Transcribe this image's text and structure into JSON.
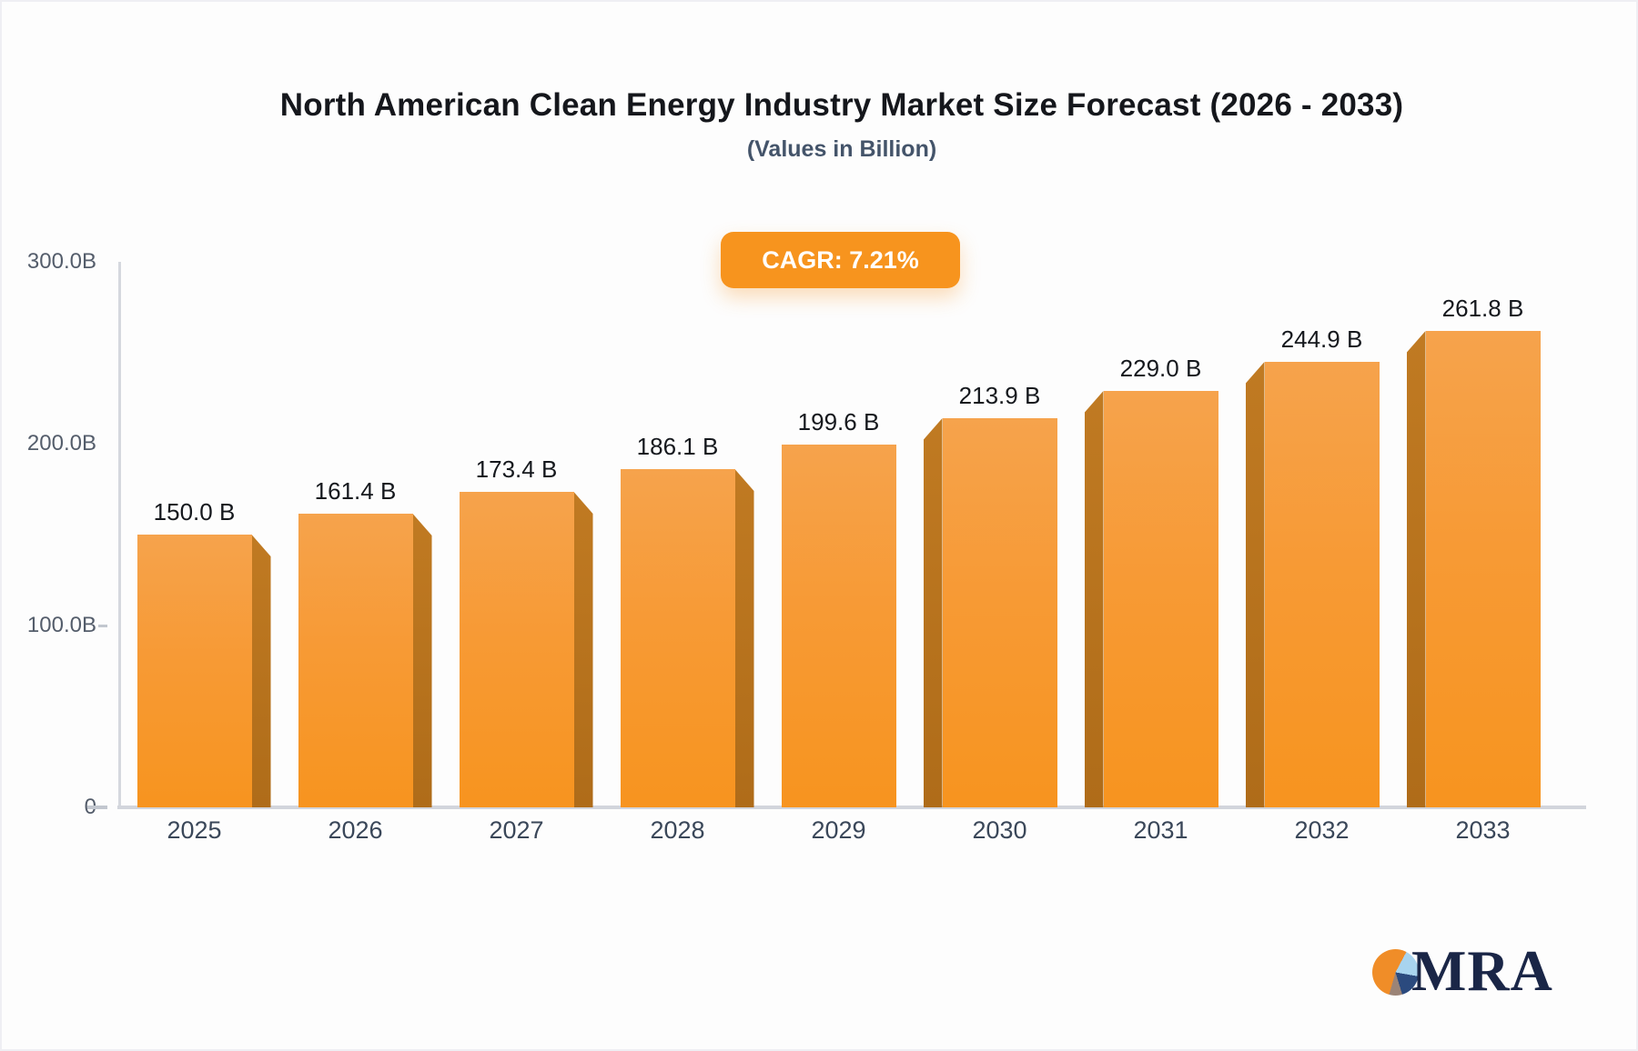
{
  "header": {
    "title": "North American Clean Energy Industry Market Size Forecast (2026 - 2033)",
    "subtitle": "(Values in Billion)",
    "cagr_badge": "CAGR: 7.21%"
  },
  "chart_data": {
    "type": "bar",
    "title": "North American Clean Energy Industry Market Size Forecast (2026 - 2033)",
    "subtitle": "(Values in Billion)",
    "annotation": "CAGR: 7.21%",
    "categories": [
      "2025",
      "2026",
      "2027",
      "2028",
      "2029",
      "2030",
      "2031",
      "2032",
      "2033"
    ],
    "values": [
      150.0,
      161.4,
      173.4,
      186.1,
      199.6,
      213.9,
      229.0,
      244.9,
      261.8
    ],
    "value_labels": [
      "150.0 B",
      "161.4 B",
      "173.4 B",
      "186.1 B",
      "199.6 B",
      "213.9 B",
      "229.0 B",
      "244.9 B",
      "261.8 B"
    ],
    "xlabel": "",
    "ylabel": "",
    "ylim": [
      0,
      300
    ],
    "y_ticks": [
      {
        "label": "300.0B",
        "value": 300
      },
      {
        "label": "200.0B",
        "value": 200
      },
      {
        "label": "100.0B",
        "value": 100
      },
      {
        "label": "0",
        "value": 0
      }
    ],
    "grid": false,
    "legend": false,
    "style": "3d-perspective-bars"
  },
  "colors": {
    "bar_top": "#F6A34C",
    "bar_bottom": "#F7941F",
    "bar_side": "#B26F1B",
    "accent_orange": "#F7941E",
    "axis_gray": "#D5D8DE",
    "title_text": "#15171C",
    "subtitle_text": "#44546A",
    "logo_navy": "#1A2647"
  },
  "logo": {
    "text": "MRA",
    "pie_slice_colors": [
      "#F08D28",
      "#A8D4EF",
      "#2B4A7E",
      "#9B8477"
    ]
  }
}
